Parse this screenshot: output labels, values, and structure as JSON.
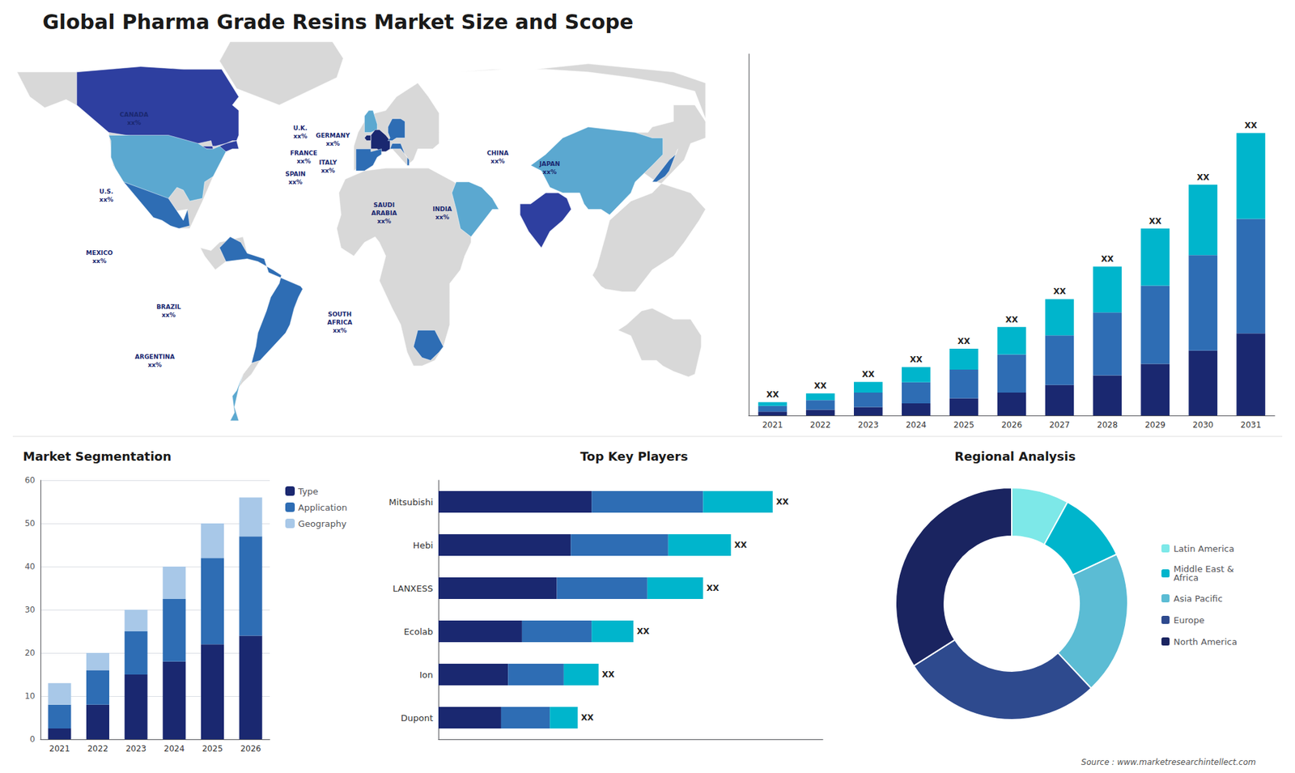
{
  "chart_data": [
    {
      "type": "map",
      "title": "Global Pharma Grade Resins Market Size and Scope",
      "annotations": [
        "CANADA\nxx%",
        "U.S.\nxx%",
        "MEXICO\nxx%",
        "BRAZIL\nxx%",
        "ARGENTINA\nxx%",
        "U.K.\nxx%",
        "FRANCE\nxx%",
        "SPAIN\nxx%",
        "GERMANY\nxx%",
        "ITALY\nxx%",
        "SAUDI\nARABIA\nxx%",
        "SOUTH\nAFRICA\nxx%",
        "CHINA\nxx%",
        "INDIA\nxx%",
        "JAPAN\nxx%"
      ]
    },
    {
      "type": "bar",
      "stacked": true,
      "categories": [
        "2021",
        "2022",
        "2023",
        "2024",
        "2025",
        "2026",
        "2027",
        "2028",
        "2029",
        "2030",
        "2031"
      ],
      "series": [
        {
          "color": "#1a2870",
          "values": [
            1.0,
            1.5,
            2.2,
            3.2,
            4.5,
            6.0,
            8.0,
            10.5,
            13.5,
            17.0,
            21.5
          ]
        },
        {
          "color": "#2e6db4",
          "values": [
            1.5,
            2.5,
            3.8,
            5.5,
            7.5,
            10.0,
            13.0,
            16.5,
            20.5,
            25.0,
            30.0
          ]
        },
        {
          "color": "#00b5cc",
          "values": [
            1.0,
            1.8,
            2.8,
            4.0,
            5.5,
            7.2,
            9.5,
            12.0,
            15.0,
            18.5,
            22.5
          ],
          "value_labels": [
            "XX",
            "XX",
            "XX",
            "XX",
            "XX",
            "XX",
            "XX",
            "XX",
            "XX",
            "XX",
            "XX"
          ]
        }
      ],
      "ylim": [
        0,
        94.72
      ],
      "tick_labels": "x",
      "grid": false
    },
    {
      "type": "bar",
      "title": "Market Segmentation",
      "stacked": true,
      "categories": [
        "2021",
        "2022",
        "2023",
        "2024",
        "2025",
        "2026"
      ],
      "series": [
        {
          "name": "Type",
          "color": "#1a2870",
          "values": [
            2.5,
            8.0,
            15.0,
            18.0,
            22.0,
            24.0
          ]
        },
        {
          "name": "Application",
          "color": "#2e6db4",
          "values": [
            5.5,
            8.0,
            10.0,
            14.5,
            20.0,
            23.0
          ]
        },
        {
          "name": "Geography",
          "color": "#a8c8e8",
          "values": [
            5.0,
            4.0,
            5.0,
            7.5,
            8.0,
            9.0
          ]
        }
      ],
      "ylim": [
        0,
        60
      ],
      "yticks": [
        0,
        10,
        20,
        30,
        40,
        50,
        60
      ],
      "grid": true,
      "legend": "right"
    },
    {
      "type": "bar",
      "title": "Top Key Players",
      "orientation": "horizontal",
      "stacked": true,
      "categories": [
        "Mitsubishi",
        "Hebi",
        "LANXESS",
        "Ecolab",
        "Ion",
        "Dupont"
      ],
      "series": [
        {
          "color": "#1a2870",
          "values": [
            2.2,
            1.9,
            1.7,
            1.2,
            1.0,
            0.9
          ]
        },
        {
          "color": "#2e6db4",
          "values": [
            1.6,
            1.4,
            1.3,
            1.0,
            0.8,
            0.7
          ]
        },
        {
          "color": "#00b5cc",
          "values": [
            1.0,
            0.9,
            0.8,
            0.6,
            0.5,
            0.4
          ],
          "value_labels": [
            "XX",
            "XX",
            "XX",
            "XX",
            "XX",
            "XX"
          ]
        }
      ],
      "xlim": [
        0,
        5.52
      ],
      "tick_labels": "y",
      "grid": false
    },
    {
      "type": "pie",
      "title": "Regional Analysis",
      "categories": [
        "Latin America",
        "Middle East &\nAfrica",
        "Asia Pacific",
        "Europe",
        "North America"
      ],
      "values": [
        8,
        10,
        20,
        28,
        34
      ],
      "colors": [
        "#7de8e8",
        "#00b5cc",
        "#5bbcd4",
        "#2e4a8e",
        "#1a2460"
      ],
      "legend": "right",
      "annotations": [
        "Source : www.marketresearchintellect.com"
      ]
    }
  ]
}
